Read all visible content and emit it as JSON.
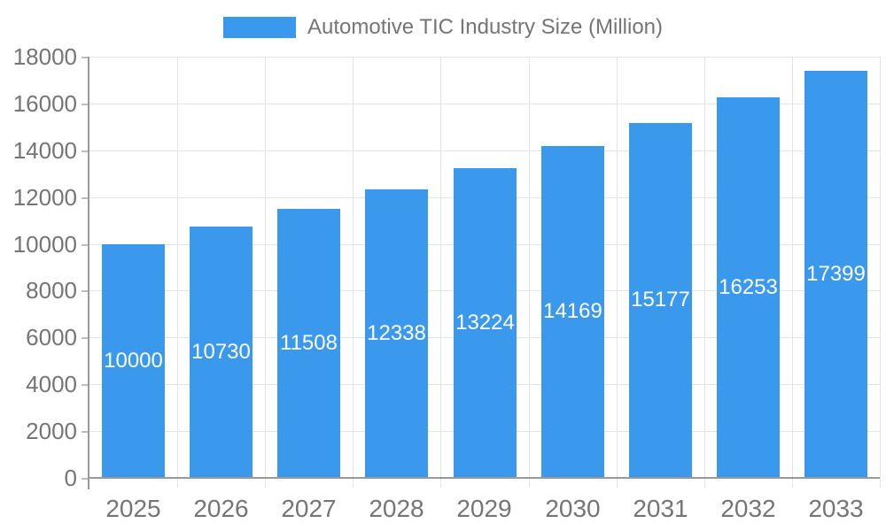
{
  "legend": {
    "label": "Automotive TIC Industry Size (Million)"
  },
  "chart_data": {
    "type": "bar",
    "title": "Automotive TIC Industry Size (Million)",
    "categories": [
      "2025",
      "2026",
      "2027",
      "2028",
      "2029",
      "2030",
      "2031",
      "2032",
      "2033"
    ],
    "values": [
      10000,
      10730,
      11508,
      12338,
      13224,
      14169,
      15177,
      16253,
      17399
    ],
    "xlabel": "",
    "ylabel": "",
    "ylim": [
      0,
      18000
    ],
    "ytick_step": 2000,
    "ytick_labels": [
      "0",
      "2000",
      "4000",
      "6000",
      "8000",
      "10000",
      "12000",
      "14000",
      "16000",
      "18000"
    ],
    "grid": true,
    "legend_position": "top-center",
    "bar_color": "#3b99ed",
    "bar_label_color": "#ffffff",
    "axis_text_color": "#757575",
    "grid_color": "#e4e4e4",
    "axis_line_color": "#9a9a9a",
    "tick_color": "#bdbdbd",
    "background_color": "#ffffff"
  }
}
